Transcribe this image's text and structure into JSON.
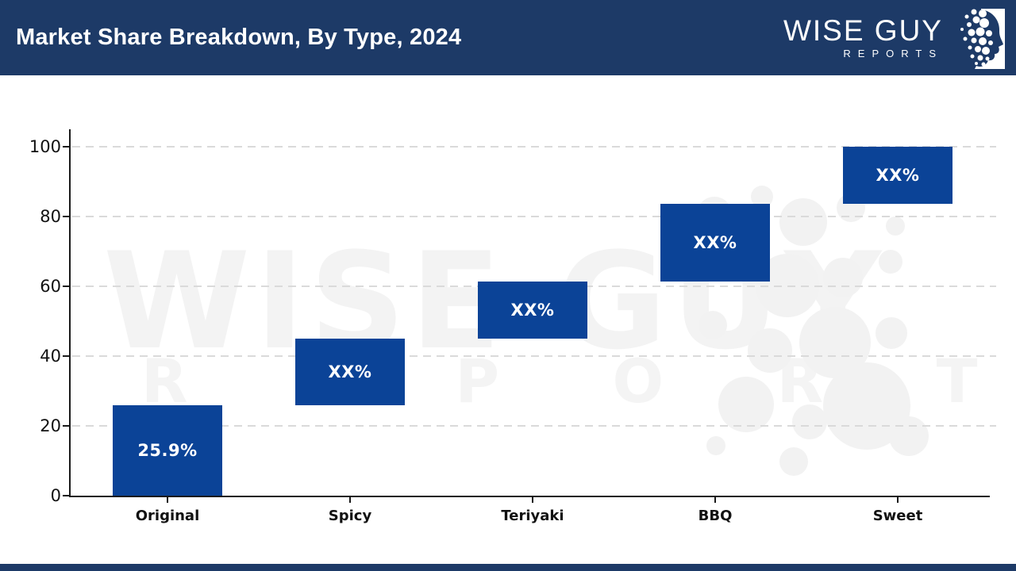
{
  "header": {
    "title": "Market Share Breakdown, By Type, 2024",
    "brand": {
      "line1": "WISE GUY",
      "line2": "REPORTS"
    }
  },
  "watermark": {
    "line1": "WISE GUY",
    "line2": "R E P O R T S"
  },
  "colors": {
    "header_bg": "#1d3a67",
    "footer_bg": "#1d3a67",
    "bar": "#0b4397",
    "bar_label": "#ffffff",
    "gridline": "#dadada",
    "axis": "#1a1a1a",
    "watermark": "#f3f3f3"
  },
  "chart_data": {
    "type": "bar",
    "subtype": "waterfall",
    "title": "Market Share Breakdown, By Type, 2024",
    "xlabel": "",
    "ylabel": "",
    "ylim": [
      0,
      100
    ],
    "yticks": [
      0,
      20,
      40,
      60,
      80,
      100
    ],
    "grid": "horizontal-dashed",
    "legend": "none",
    "categories": [
      "Original",
      "Spicy",
      "Teriyaki",
      "BBQ",
      "Sweet"
    ],
    "segments": [
      {
        "category": "Original",
        "start": 0,
        "end": 25.9,
        "increment": 25.9,
        "label": "25.9%"
      },
      {
        "category": "Spicy",
        "start": 25.9,
        "end": 45.0,
        "increment": 19.1,
        "label": "XX%"
      },
      {
        "category": "Teriyaki",
        "start": 45.0,
        "end": 61.3,
        "increment": 16.3,
        "label": "XX%"
      },
      {
        "category": "BBQ",
        "start": 61.3,
        "end": 83.6,
        "increment": 22.3,
        "label": "XX%"
      },
      {
        "category": "Sweet",
        "start": 83.6,
        "end": 100.0,
        "increment": 16.4,
        "label": "XX%"
      }
    ]
  }
}
